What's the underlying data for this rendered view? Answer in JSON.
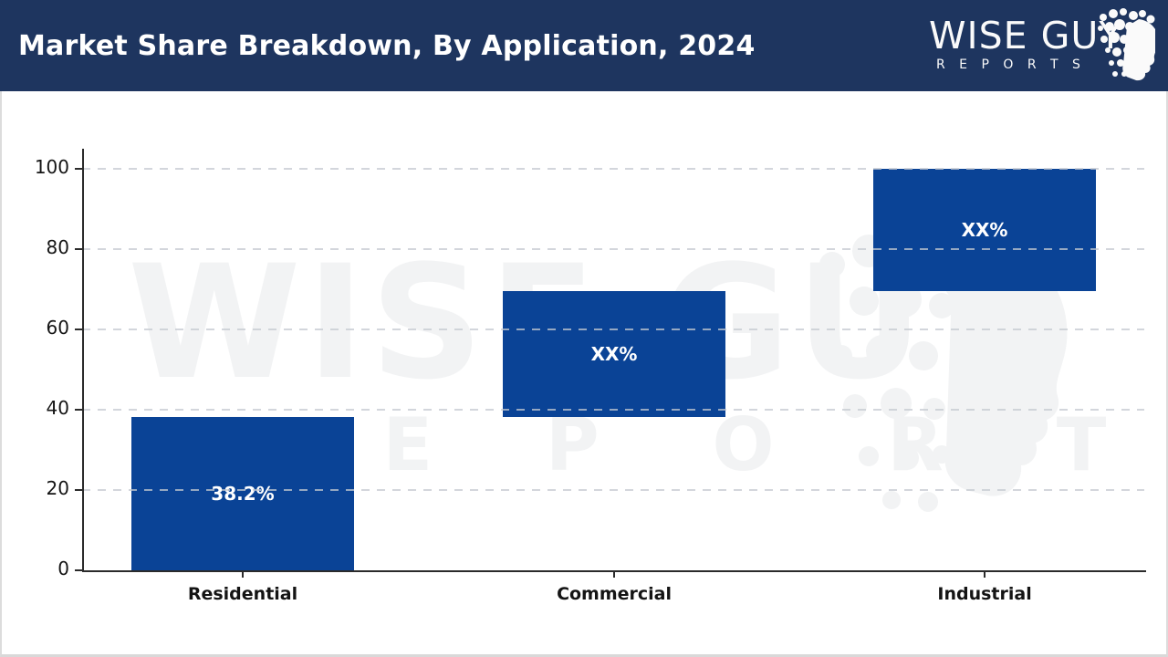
{
  "header": {
    "title": "Market Share Breakdown, By Application, 2024",
    "background_color": "#1e355f",
    "logo": {
      "wordmark": "WISE GUY",
      "subtext": "R E P O R T S",
      "icon": "dotted-face-profile"
    }
  },
  "watermark": {
    "wordmark": "WISE GUY",
    "subtext": "R E P O R T S",
    "icon": "dotted-face-profile",
    "color": "#f2f3f4"
  },
  "chart_data": {
    "type": "bar",
    "subtype": "stacked-waterfall",
    "title": "Market Share Breakdown, By Application, 2024",
    "categories": [
      "Residential",
      "Commercial",
      "Industrial"
    ],
    "segments": [
      {
        "category": "Residential",
        "start": 0,
        "end": 38.2,
        "label": "38.2%"
      },
      {
        "category": "Commercial",
        "start": 38.2,
        "end": 69.5,
        "label": "XX%"
      },
      {
        "category": "Industrial",
        "start": 69.5,
        "end": 100,
        "label": "XX%"
      }
    ],
    "unit": "%",
    "yticks": [
      0,
      20,
      40,
      60,
      80,
      100
    ],
    "ylim": [
      0,
      105
    ],
    "xlabel": "",
    "ylabel": "",
    "grid": "horizontal-dashed",
    "legend": "none",
    "bar_color": "#0a4396",
    "bar_label_color": "#ffffff",
    "axis_color": "#2b2b2b"
  }
}
